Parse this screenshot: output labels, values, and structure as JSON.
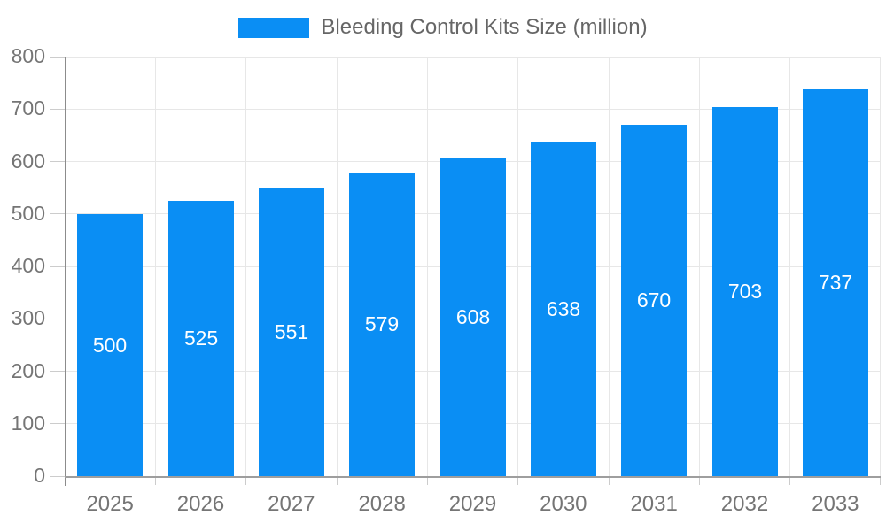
{
  "legend": {
    "label": "Bleeding Control Kits Size (million)"
  },
  "chart_data": {
    "type": "bar",
    "title": "",
    "legend_label": "Bleeding Control Kits Size (million)",
    "categories": [
      "2025",
      "2026",
      "2027",
      "2028",
      "2029",
      "2030",
      "2031",
      "2032",
      "2033"
    ],
    "values": [
      500,
      525,
      551,
      579,
      608,
      638,
      670,
      703,
      737
    ],
    "bar_value_labels": [
      "500",
      "525",
      "551",
      "579",
      "608",
      "638",
      "670",
      "703",
      "737"
    ],
    "xlabel": "",
    "ylabel": "",
    "ylim": [
      0,
      800
    ],
    "ytick_step": 100,
    "ytick_labels": [
      "0",
      "100",
      "200",
      "300",
      "400",
      "500",
      "600",
      "700",
      "800"
    ],
    "grid": true,
    "legend_position": "top",
    "colors": {
      "bar": "#0a8ef4",
      "bar_label": "#ffffff",
      "gridline": "#e7e7e7",
      "axis_line": "#9e9e9e",
      "tick": "#cccccc",
      "axis_label": "#757575",
      "legend_text": "#666666",
      "background": "#ffffff"
    }
  }
}
